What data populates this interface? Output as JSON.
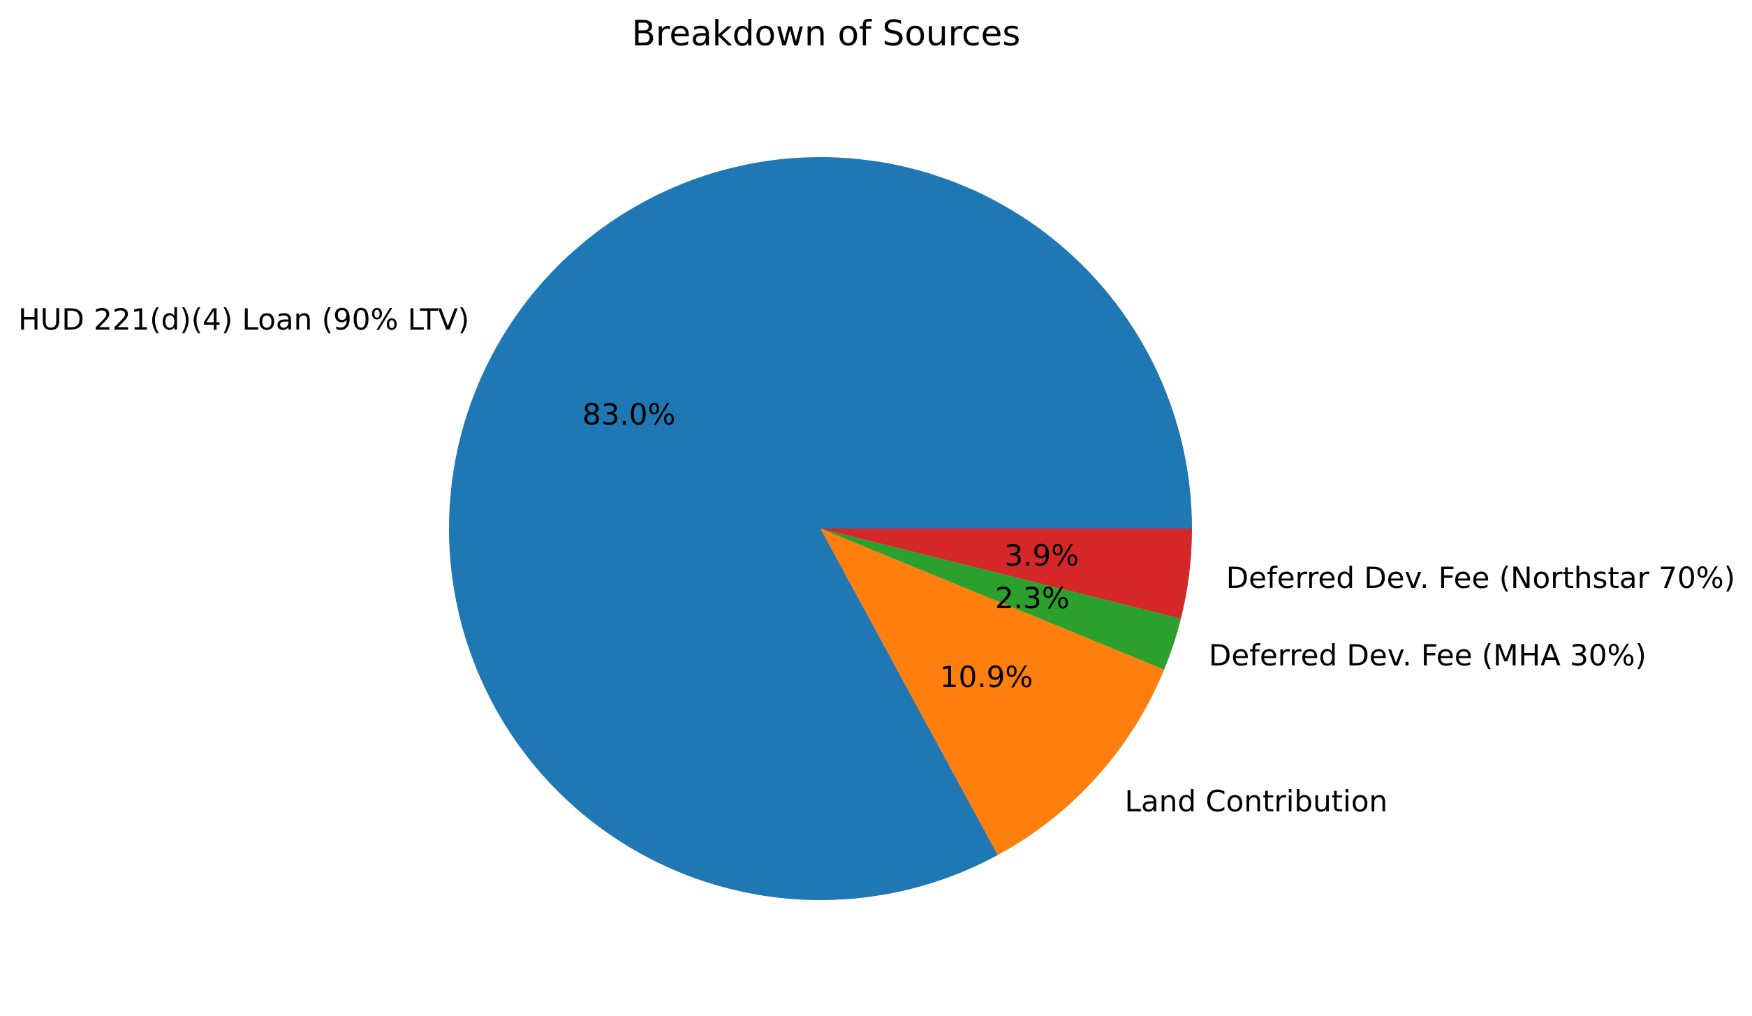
{
  "title": "Breakdown of Sources",
  "chart_data": {
    "type": "pie",
    "title": "Breakdown of Sources",
    "start_angle_deg": 0,
    "direction": "counterclockwise",
    "label_distance": 1.1,
    "pct_distance": 0.6,
    "legend": "none",
    "background_color": "#ffffff",
    "text_color": "#000000",
    "slices": [
      {
        "label": "HUD 221(d)(4) Loan (90% LTV)",
        "pct": 83.0,
        "pct_label": "83.0%",
        "color": "#1f77b4"
      },
      {
        "label": "Land Contribution",
        "pct": 10.9,
        "pct_label": "10.9%",
        "color": "#ff7f0e"
      },
      {
        "label": "Deferred Dev. Fee (MHA 30%)",
        "pct": 2.3,
        "pct_label": "2.3%",
        "color": "#2ca02c"
      },
      {
        "label": "Deferred Dev. Fee (Northstar 70%)",
        "pct": 3.9,
        "pct_label": "3.9%",
        "color": "#d62728"
      }
    ]
  }
}
